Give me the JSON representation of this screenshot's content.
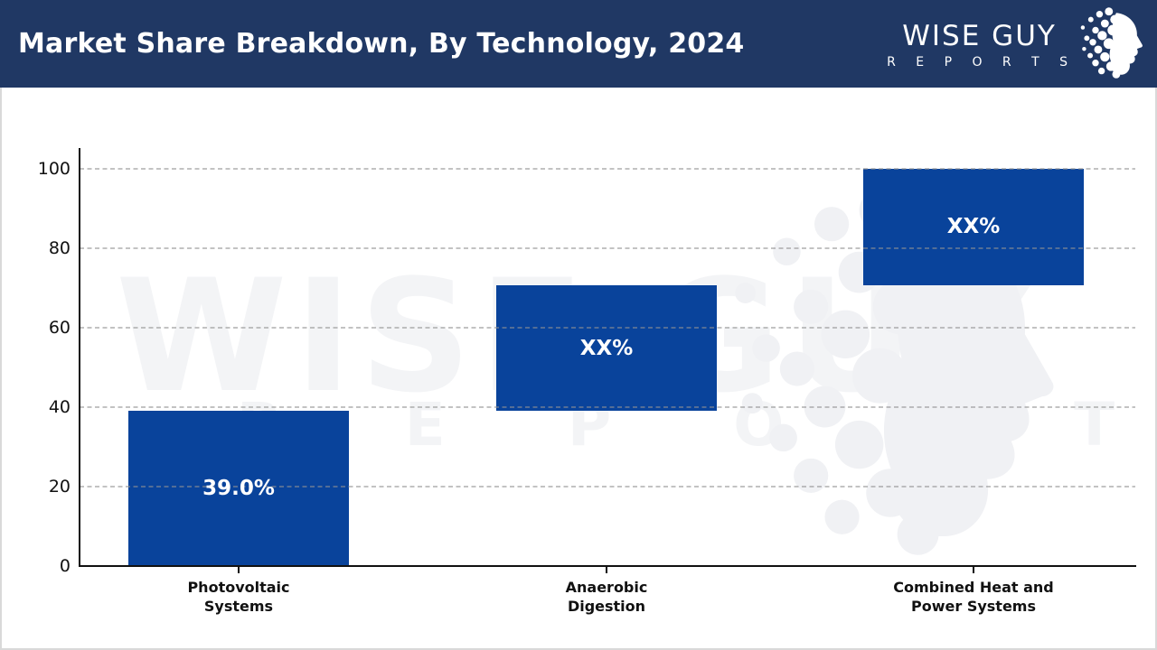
{
  "header": {
    "title": "Market Share Breakdown, By Technology, 2024",
    "logo": {
      "line1": "WISE GUY",
      "line2": "R E P O R T S"
    }
  },
  "watermark": {
    "line1": "WISE GUY",
    "line2": "R E P O R T S"
  },
  "chart_data": {
    "type": "bar",
    "subtype": "floating-segment-waterfall",
    "title": "Market Share Breakdown, By Technology, 2024",
    "categories": [
      "Photovoltaic Systems",
      "Anaerobic Digestion",
      "Combined Heat and Power Systems"
    ],
    "category_lines": [
      [
        "Photovoltaic",
        "Systems"
      ],
      [
        "Anaerobic",
        "Digestion"
      ],
      [
        "Combined Heat and",
        "Power Systems"
      ]
    ],
    "bars": [
      {
        "category": "Photovoltaic Systems",
        "start": 0,
        "end": 39,
        "label": "39.0%"
      },
      {
        "category": "Anaerobic Digestion",
        "start": 39,
        "end": 70.7,
        "label": "XX%"
      },
      {
        "category": "Combined Heat and Power Systems",
        "start": 70.7,
        "end": 100,
        "label": "XX%"
      }
    ],
    "yticks": [
      0,
      20,
      40,
      60,
      80,
      100
    ],
    "ylim": [
      0,
      105
    ],
    "xlabel": "",
    "ylabel": "",
    "grid": "horizontal-dashed",
    "legend": "none",
    "bar_color": "#09439B",
    "header_color": "#203864",
    "label_color": "#ffffff"
  }
}
